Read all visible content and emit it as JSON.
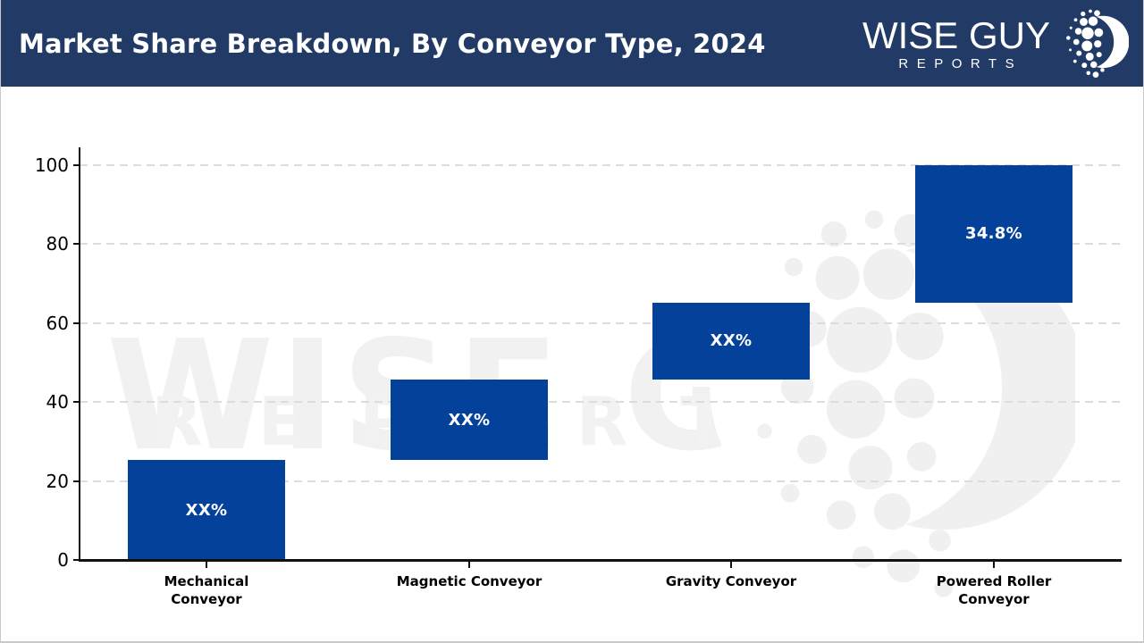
{
  "header": {
    "title": "Market Share Breakdown, By Conveyor Type, 2024",
    "logo": {
      "line1": "WISE GUY",
      "line2": "REPORTS"
    }
  },
  "watermark": {
    "line1": "WISE GUY",
    "line2": "REPORTS"
  },
  "chart_data": {
    "type": "bar",
    "subtype": "floating-waterfall",
    "title": "Market Share Breakdown, By Conveyor Type, 2024",
    "categories": [
      "Mechanical Conveyor",
      "Magnetic Conveyor",
      "Gravity Conveyor",
      "Powered Roller Conveyor"
    ],
    "category_label_lines": [
      [
        "Mechanical",
        "Conveyor"
      ],
      [
        "Magnetic Conveyor"
      ],
      [
        "Gravity Conveyor"
      ],
      [
        "Powered Roller",
        "Conveyor"
      ]
    ],
    "bars": [
      {
        "category": "Mechanical Conveyor",
        "start": 0,
        "end": 25.3,
        "label": "XX%"
      },
      {
        "category": "Magnetic Conveyor",
        "start": 25.3,
        "end": 45.7,
        "label": "XX%"
      },
      {
        "category": "Gravity Conveyor",
        "start": 45.7,
        "end": 65.2,
        "label": "XX%"
      },
      {
        "category": "Powered Roller Conveyor",
        "start": 65.2,
        "end": 100,
        "label": "34.8%"
      }
    ],
    "ylim": [
      0,
      100
    ],
    "yticks": [
      0,
      20,
      40,
      60,
      80,
      100
    ],
    "grid": "horizontal-dashed",
    "legend": "none",
    "colors": {
      "bar": "#04419b",
      "bar_label": "#ffffff",
      "axis": "#111111",
      "gridline": "#dcdcdc",
      "header_bg": "#213a66",
      "watermark": "#f1f1f1"
    }
  }
}
